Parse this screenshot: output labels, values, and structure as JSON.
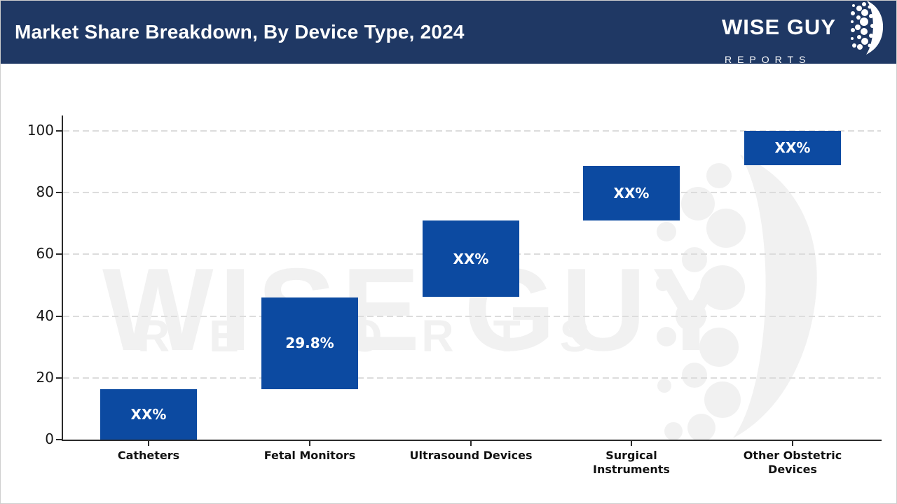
{
  "header": {
    "title": "Market Share Breakdown, By Device Type, 2024",
    "bg_color": "#1f3864",
    "logo": {
      "primary": "WISE GUY",
      "secondary": "REPORTS"
    }
  },
  "watermark": {
    "primary": "WISE GUY",
    "secondary": "REPORTS"
  },
  "chart_data": {
    "type": "waterfall",
    "title": "Market Share Breakdown, By Device Type, 2024",
    "xlabel": "",
    "ylabel": "",
    "ylim": [
      0,
      100
    ],
    "yticks": [
      0,
      20,
      40,
      60,
      80,
      100
    ],
    "grid": "horizontal-dashed",
    "legend": "none",
    "bar_color": "#0c4aa1",
    "bar_label_color": "#ffffff",
    "categories": [
      "Catheters",
      "Fetal Monitors",
      "Ultrasound Devices",
      "Surgical Instruments",
      "Other Obstetric Devices"
    ],
    "segments": [
      {
        "category": "Catheters",
        "category_lines": [
          "Catheters"
        ],
        "start": 0,
        "end": 16.3,
        "value": 16.3,
        "label": "XX%"
      },
      {
        "category": "Fetal Monitors",
        "category_lines": [
          "Fetal Monitors"
        ],
        "start": 16.3,
        "end": 46.1,
        "value": 29.8,
        "label": "29.8%"
      },
      {
        "category": "Ultrasound Devices",
        "category_lines": [
          "Ultrasound Devices"
        ],
        "start": 46.2,
        "end": 71.0,
        "value": 24.8,
        "label": "XX%"
      },
      {
        "category": "Surgical Instruments",
        "category_lines": [
          "Surgical",
          "Instruments"
        ],
        "start": 71.0,
        "end": 88.7,
        "value": 17.7,
        "label": "XX%"
      },
      {
        "category": "Other Obstetric Devices",
        "category_lines": [
          "Other Obstetric",
          "Devices"
        ],
        "start": 88.9,
        "end": 100,
        "value": 11.1,
        "label": "XX%"
      }
    ]
  }
}
